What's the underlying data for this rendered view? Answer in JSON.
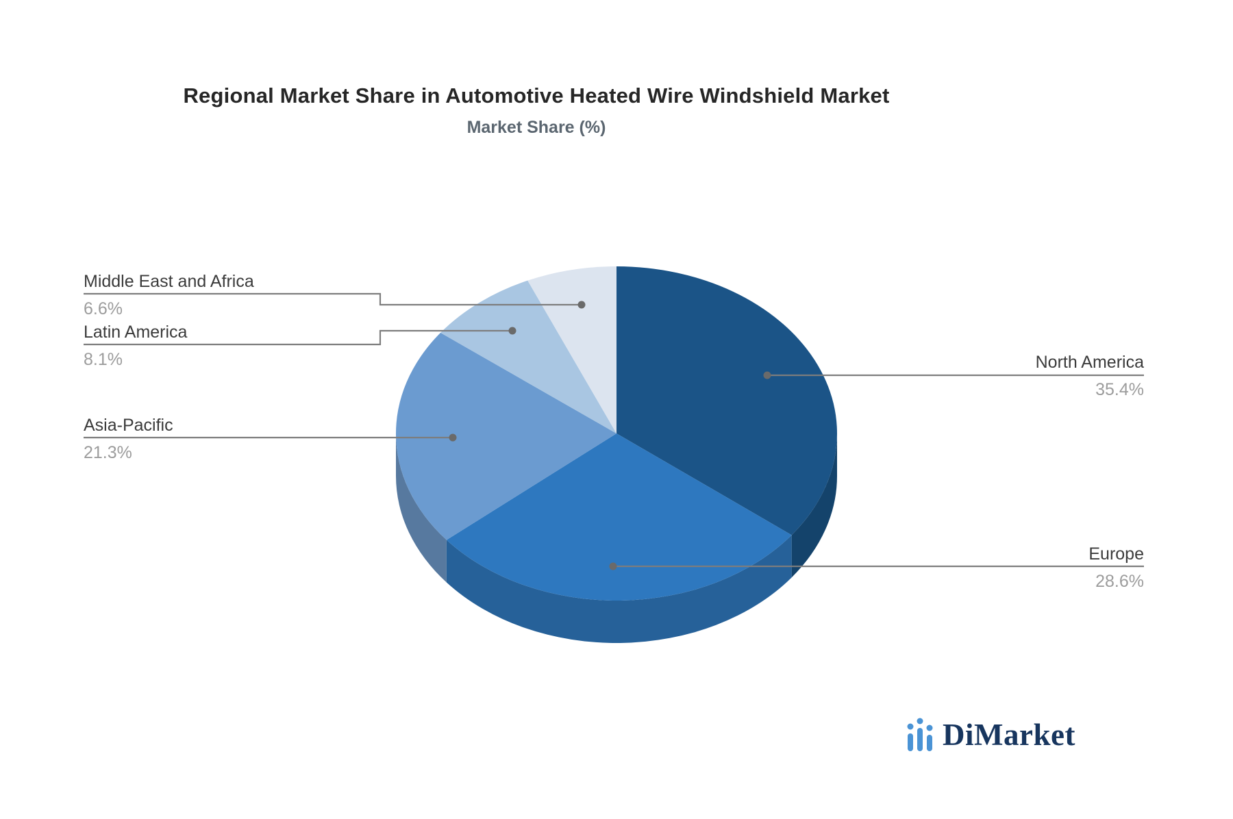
{
  "title": "Regional Market Share in Automotive Heated Wire Windshield Market",
  "subtitle": "Market Share (%)",
  "logo": {
    "text": "DiMarket",
    "icon": "bar-chart-logo-icon",
    "icon_color": "#4a93d5",
    "text_color": "#17355e"
  },
  "chart_data": {
    "type": "pie",
    "style": "3d-extruded",
    "unit": "%",
    "start_angle_deg": 90,
    "direction": "clockwise",
    "legend": "none",
    "slices": [
      {
        "label": "North America",
        "value": 35.4,
        "pct_label": "35.4%",
        "color": "#1b5487",
        "side_color": "#14436b",
        "label_side": "right"
      },
      {
        "label": "Europe",
        "value": 28.6,
        "pct_label": "28.6%",
        "color": "#2e78bf",
        "side_color": "#266199",
        "label_side": "right"
      },
      {
        "label": "Asia-Pacific",
        "value": 21.3,
        "pct_label": "21.3%",
        "color": "#6b9bd0",
        "side_color": "#57799f",
        "label_side": "left"
      },
      {
        "label": "Latin America",
        "value": 8.1,
        "pct_label": "8.1%",
        "color": "#a9c6e2",
        "label_side": "left"
      },
      {
        "label": "Middle East and Africa",
        "value": 6.6,
        "pct_label": "6.6%",
        "color": "#dce4ef",
        "label_side": "left"
      }
    ],
    "colors": {
      "leader_line": "#7d7d7d",
      "leader_dot": "#6a6a6a",
      "label_text": "#3b3b3b",
      "pct_text": "#9c9c9c",
      "background": "#ffffff"
    }
  }
}
